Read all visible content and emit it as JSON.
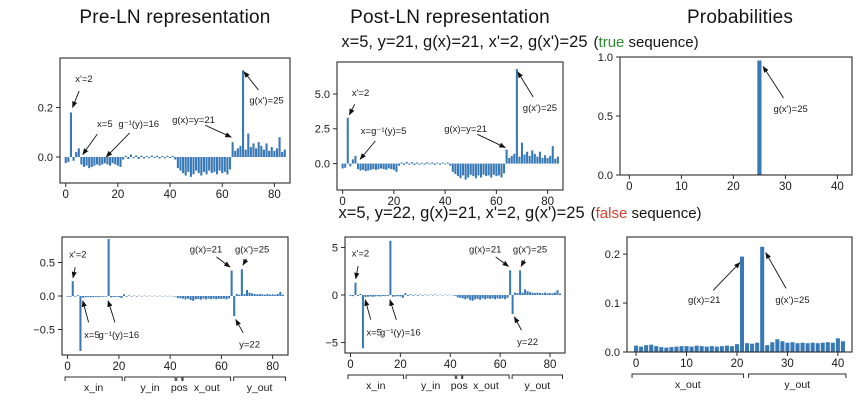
{
  "figure": {
    "column_titles": [
      "Pre-LN representation",
      "Post-LN representation",
      "Probabilities"
    ],
    "row_titles": [
      {
        "main": "x=5, y=21, g(x)=21, x'=2, g(x')=25",
        "open": "(",
        "status": "true",
        "suffix": " sequence)"
      },
      {
        "main": "x=5, y=22, g(x)=21, x'=2, g(x')=25",
        "open": "(",
        "status": "false",
        "suffix": " sequence)"
      }
    ]
  },
  "colors": {
    "bar": "#3878b4",
    "true_green": "#2e8b2e",
    "false_red": "#e03c2d",
    "axis": "#2b2b2b",
    "text": "#1a1a1a"
  },
  "chart_data": [
    {
      "name": "pre-ln-true",
      "type": "bar",
      "xlim": [
        -2.2,
        86
      ],
      "ylim": [
        -0.105,
        0.4
      ],
      "xticks": [
        {
          "v": 0,
          "l": "0"
        },
        {
          "v": 20,
          "l": "20"
        },
        {
          "v": 40,
          "l": "40"
        },
        {
          "v": 60,
          "l": "60"
        },
        {
          "v": 80,
          "l": "80"
        }
      ],
      "yticks": [
        {
          "v": 0.0,
          "l": "0.0"
        },
        {
          "v": 0.2,
          "l": "0.2"
        }
      ],
      "values": [
        -0.025,
        -0.02,
        0.18,
        -0.015,
        0.02,
        0.035,
        -0.03,
        -0.04,
        -0.035,
        -0.045,
        -0.04,
        -0.035,
        -0.03,
        -0.035,
        -0.03,
        -0.025,
        -0.03,
        -0.035,
        -0.025,
        -0.03,
        -0.035,
        -0.04,
        -0.01,
        0.005,
        -0.008,
        0.01,
        -0.005,
        0.006,
        -0.008,
        0.005,
        -0.006,
        0.004,
        -0.005,
        0.006,
        -0.004,
        0.005,
        -0.006,
        0.004,
        -0.005,
        0.005,
        -0.004,
        0.005,
        -0.01,
        -0.045,
        -0.055,
        -0.065,
        -0.075,
        -0.06,
        -0.08,
        -0.07,
        -0.055,
        -0.065,
        -0.075,
        -0.06,
        -0.07,
        -0.055,
        -0.065,
        -0.06,
        -0.07,
        -0.055,
        -0.065,
        -0.06,
        -0.07,
        -0.05,
        0.06,
        0.025,
        0.035,
        0.045,
        0.35,
        0.03,
        0.095,
        0.04,
        0.055,
        0.035,
        0.06,
        0.045,
        0.03,
        0.055,
        0.025,
        0.04,
        0.025,
        0.035,
        0.08,
        0.02,
        0.03
      ],
      "annotations": [
        {
          "text": "x'=2",
          "tx": 7,
          "ty": 0.315,
          "ax": 2.6,
          "ay": 0.2
        },
        {
          "text": "x=5",
          "tx": 15,
          "ty": 0.135,
          "ax": 6.5,
          "ay": 0.01
        },
        {
          "text": "g⁻¹(y)=16",
          "tx": 28,
          "ty": 0.135,
          "ax": 15.5,
          "ay": 0.0
        },
        {
          "text": "g(x)=y=21",
          "tx": 49,
          "ty": 0.15,
          "ax": 63.5,
          "ay": 0.08
        },
        {
          "text": "g(x')=25",
          "tx": 77,
          "ty": 0.23,
          "ax": 68.3,
          "ay": 0.345
        }
      ]
    },
    {
      "name": "post-ln-true",
      "type": "bar",
      "xlim": [
        -2.2,
        86
      ],
      "ylim": [
        -1.9,
        7.3
      ],
      "xticks": [
        {
          "v": 0,
          "l": "0"
        },
        {
          "v": 20,
          "l": "20"
        },
        {
          "v": 40,
          "l": "40"
        },
        {
          "v": 60,
          "l": "60"
        },
        {
          "v": 80,
          "l": "80"
        }
      ],
      "yticks": [
        {
          "v": 0.0,
          "l": "0.0"
        },
        {
          "v": 2.5,
          "l": "2.5"
        },
        {
          "v": 5.0,
          "l": "5.0"
        }
      ],
      "values": [
        -0.35,
        -0.3,
        3.3,
        -0.2,
        0.3,
        0.55,
        -0.4,
        -0.5,
        -0.45,
        -0.55,
        -0.5,
        -0.45,
        -0.4,
        -0.45,
        -0.4,
        -0.35,
        -0.4,
        -0.45,
        -0.35,
        -0.4,
        -0.45,
        -0.6,
        -0.15,
        0.08,
        -0.1,
        0.12,
        -0.08,
        0.1,
        -0.1,
        0.08,
        -0.08,
        0.06,
        -0.08,
        0.09,
        -0.06,
        0.08,
        -0.09,
        0.06,
        -0.08,
        0.07,
        -0.06,
        0.08,
        -0.15,
        -0.6,
        -0.75,
        -0.9,
        -1.05,
        -0.85,
        -1.15,
        -1.0,
        -0.8,
        -0.9,
        -1.05,
        -0.85,
        -1.0,
        -0.8,
        -0.9,
        -0.85,
        -1.0,
        -0.8,
        -0.9,
        -0.85,
        -1.0,
        -0.7,
        1.0,
        0.4,
        0.55,
        0.7,
        6.8,
        0.5,
        1.5,
        0.65,
        0.85,
        0.55,
        0.95,
        0.7,
        0.5,
        0.85,
        0.4,
        0.6,
        0.4,
        0.55,
        1.25,
        0.35,
        0.5
      ],
      "annotations": [
        {
          "text": "x'=2",
          "tx": 7,
          "ty": 5.1,
          "ax": 2.6,
          "ay": 3.5
        },
        {
          "text": "x=g⁻¹(y)=5",
          "tx": 16,
          "ty": 2.35,
          "ax": 6.8,
          "ay": 0.3
        },
        {
          "text": "g(x)=y=21",
          "tx": 48,
          "ty": 2.5,
          "ax": 63.5,
          "ay": 1.15
        },
        {
          "text": "g(x')=25",
          "tx": 77,
          "ty": 4.0,
          "ax": 68.3,
          "ay": 6.6
        }
      ]
    },
    {
      "name": "prob-true",
      "type": "bar",
      "xlim": [
        -1.8,
        42.8
      ],
      "ylim": [
        0,
        1.0
      ],
      "xticks": [
        {
          "v": 0,
          "l": "0"
        },
        {
          "v": 10,
          "l": "10"
        },
        {
          "v": 20,
          "l": "20"
        },
        {
          "v": 30,
          "l": "30"
        },
        {
          "v": 40,
          "l": "40"
        }
      ],
      "yticks": [
        {
          "v": 0.0,
          "l": "0.0"
        },
        {
          "v": 0.5,
          "l": "0.5"
        },
        {
          "v": 1.0,
          "l": "1.0"
        }
      ],
      "values": [
        0.002,
        0.002,
        0.002,
        0.002,
        0.002,
        0.002,
        0.002,
        0.002,
        0.002,
        0.002,
        0.002,
        0.002,
        0.002,
        0.002,
        0.002,
        0.002,
        0.002,
        0.002,
        0.002,
        0.002,
        0.002,
        0.002,
        0.002,
        0.002,
        0.002,
        0.97,
        0.002,
        0.002,
        0.002,
        0.002,
        0.002,
        0.002,
        0.002,
        0.002,
        0.002,
        0.002,
        0.002,
        0.002,
        0.002,
        0.002,
        0.002,
        0.002
      ],
      "annotations": [
        {
          "text": "g(x')=25",
          "tx": 31,
          "ty": 0.56,
          "ax": 25.7,
          "ay": 0.92
        }
      ]
    },
    {
      "name": "pre-ln-false",
      "type": "bar",
      "xlim": [
        -2.2,
        86
      ],
      "ylim": [
        -0.88,
        0.88
      ],
      "xticks": [
        {
          "v": 0,
          "l": "0"
        },
        {
          "v": 20,
          "l": "20"
        },
        {
          "v": 40,
          "l": "40"
        },
        {
          "v": 60,
          "l": "60"
        },
        {
          "v": 80,
          "l": "80"
        }
      ],
      "yticks": [
        {
          "v": -0.5,
          "l": "−0.5"
        },
        {
          "v": 0.0,
          "l": "0.0"
        },
        {
          "v": 0.5,
          "l": "0.5"
        }
      ],
      "values": [
        -0.01,
        -0.012,
        0.22,
        -0.01,
        0.012,
        -0.82,
        -0.025,
        -0.02,
        -0.015,
        -0.02,
        -0.015,
        -0.012,
        -0.015,
        -0.01,
        -0.012,
        -0.01,
        0.85,
        -0.02,
        -0.015,
        -0.012,
        -0.015,
        -0.03,
        0.025,
        -0.01,
        0.008,
        -0.008,
        0.006,
        -0.008,
        0.005,
        -0.006,
        0.005,
        -0.005,
        0.004,
        -0.005,
        0.004,
        -0.004,
        0.004,
        -0.004,
        0.003,
        -0.004,
        0.003,
        -0.004,
        -0.008,
        -0.03,
        -0.035,
        -0.04,
        -0.05,
        -0.04,
        -0.06,
        -0.07,
        -0.05,
        -0.045,
        -0.055,
        -0.04,
        -0.05,
        -0.04,
        -0.045,
        -0.04,
        -0.05,
        -0.04,
        -0.045,
        -0.04,
        -0.05,
        -0.035,
        0.38,
        -0.3,
        0.03,
        0.02,
        0.4,
        0.03,
        0.09,
        0.05,
        0.04,
        0.03,
        0.025,
        0.03,
        0.025,
        0.02,
        0.03,
        0.02,
        0.025,
        0.02,
        0.03,
        0.06,
        0.02
      ],
      "groups": [
        {
          "label": "x_in",
          "from": -1.0,
          "to": 21.3
        },
        {
          "label": "y_in",
          "from": 22.3,
          "to": 42.0
        },
        {
          "label": "pos",
          "from": 42.6,
          "to": 44.6
        },
        {
          "label": "x_out",
          "from": 45.0,
          "to": 63.6
        },
        {
          "label": "y_out",
          "from": 64.8,
          "to": 85.0
        }
      ],
      "annotations": [
        {
          "text": "x'=2",
          "tx": 4,
          "ty": 0.62,
          "ax": 2.1,
          "ay": 0.27
        },
        {
          "text": "x=5",
          "tx": 9.5,
          "ty": -0.58,
          "ax": 5.9,
          "ay": -0.07
        },
        {
          "text": "g⁻¹(y)=16",
          "tx": 20,
          "ty": -0.58,
          "ax": 15.8,
          "ay": -0.07
        },
        {
          "text": "g(x)=21",
          "tx": 54,
          "ty": 0.7,
          "ax": 63.4,
          "ay": 0.43
        },
        {
          "text": "g(x')=25",
          "tx": 72,
          "ty": 0.7,
          "ax": 68.4,
          "ay": 0.46
        },
        {
          "text": "y=22",
          "tx": 71,
          "ty": -0.72,
          "ax": 65.6,
          "ay": -0.35
        }
      ]
    },
    {
      "name": "post-ln-false",
      "type": "bar",
      "xlim": [
        -2.2,
        86
      ],
      "ylim": [
        -6.1,
        6.1
      ],
      "xticks": [
        {
          "v": 0,
          "l": "0"
        },
        {
          "v": 20,
          "l": "20"
        },
        {
          "v": 40,
          "l": "40"
        },
        {
          "v": 60,
          "l": "60"
        },
        {
          "v": 80,
          "l": "80"
        }
      ],
      "yticks": [
        {
          "v": -5,
          "l": "−5"
        },
        {
          "v": 0,
          "l": "0"
        },
        {
          "v": 5,
          "l": "5"
        }
      ],
      "values": [
        -0.1,
        -0.12,
        1.3,
        -0.1,
        0.12,
        -5.6,
        -0.2,
        -0.18,
        -0.15,
        -0.18,
        -0.15,
        -0.12,
        -0.15,
        -0.1,
        -0.12,
        -0.1,
        5.7,
        -0.18,
        -0.15,
        -0.12,
        -0.15,
        -0.3,
        0.2,
        -0.1,
        0.08,
        -0.08,
        0.06,
        -0.08,
        0.05,
        -0.06,
        0.05,
        -0.05,
        0.04,
        -0.05,
        0.04,
        -0.04,
        0.04,
        -0.04,
        0.03,
        -0.04,
        0.03,
        -0.04,
        -0.08,
        -0.25,
        -0.3,
        -0.35,
        -0.45,
        -0.35,
        -0.55,
        -0.6,
        -0.45,
        -0.4,
        -0.5,
        -0.35,
        -0.45,
        -0.35,
        -0.4,
        -0.35,
        -0.45,
        -0.35,
        -0.4,
        -0.35,
        -0.45,
        -0.3,
        2.6,
        -2.0,
        0.25,
        0.2,
        2.6,
        0.25,
        0.6,
        0.4,
        0.3,
        0.25,
        0.2,
        0.25,
        0.2,
        0.18,
        0.25,
        0.18,
        0.2,
        0.18,
        0.25,
        0.5,
        0.15
      ],
      "groups": [
        {
          "label": "x_in",
          "from": -1.0,
          "to": 21.3
        },
        {
          "label": "y_in",
          "from": 22.3,
          "to": 42.0
        },
        {
          "label": "pos",
          "from": 42.6,
          "to": 44.6
        },
        {
          "label": "x_out",
          "from": 45.0,
          "to": 63.6
        },
        {
          "label": "y_out",
          "from": 64.8,
          "to": 85.0
        }
      ],
      "annotations": [
        {
          "text": "x'=2",
          "tx": 4,
          "ty": 4.4,
          "ax": 2.1,
          "ay": 1.7
        },
        {
          "text": "x=5",
          "tx": 9.5,
          "ty": -3.9,
          "ax": 5.9,
          "ay": -0.5
        },
        {
          "text": "g⁻¹(y)=16",
          "tx": 20,
          "ty": -3.9,
          "ax": 15.8,
          "ay": -0.5
        },
        {
          "text": "g(x)=21",
          "tx": 54,
          "ty": 4.8,
          "ax": 63.4,
          "ay": 3.0
        },
        {
          "text": "g(x')=25",
          "tx": 72,
          "ty": 4.8,
          "ax": 68.4,
          "ay": 3.0
        },
        {
          "text": "y=22",
          "tx": 71,
          "ty": -4.9,
          "ax": 65.7,
          "ay": -2.3
        }
      ]
    },
    {
      "name": "prob-false",
      "type": "bar",
      "xlim": [
        -1.8,
        42.8
      ],
      "ylim": [
        0,
        0.235
      ],
      "xticks": [
        {
          "v": 0,
          "l": "0"
        },
        {
          "v": 10,
          "l": "10"
        },
        {
          "v": 20,
          "l": "20"
        },
        {
          "v": 30,
          "l": "30"
        },
        {
          "v": 40,
          "l": "40"
        }
      ],
      "yticks": [
        {
          "v": 0.0,
          "l": "0.0"
        },
        {
          "v": 0.1,
          "l": "0.1"
        },
        {
          "v": 0.2,
          "l": "0.2"
        }
      ],
      "values": [
        0.013,
        0.011,
        0.014,
        0.015,
        0.012,
        0.01,
        0.009,
        0.01,
        0.011,
        0.012,
        0.012,
        0.011,
        0.013,
        0.012,
        0.011,
        0.012,
        0.011,
        0.012,
        0.013,
        0.012,
        0.016,
        0.195,
        0.018,
        0.017,
        0.019,
        0.215,
        0.014,
        0.02,
        0.026,
        0.022,
        0.019,
        0.02,
        0.018,
        0.019,
        0.018,
        0.019,
        0.018,
        0.019,
        0.02,
        0.019,
        0.028,
        0.022
      ],
      "groups": [
        {
          "label": "x_out",
          "from": -0.8,
          "to": 21.3
        },
        {
          "label": "y_out",
          "from": 22.3,
          "to": 41.6
        }
      ],
      "annotations": [
        {
          "text": "g(x)=21",
          "tx": 13.5,
          "ty": 0.107,
          "ax": 20.6,
          "ay": 0.183
        },
        {
          "text": "g(x')=25",
          "tx": 31,
          "ty": 0.107,
          "ax": 25.7,
          "ay": 0.203
        }
      ]
    }
  ]
}
